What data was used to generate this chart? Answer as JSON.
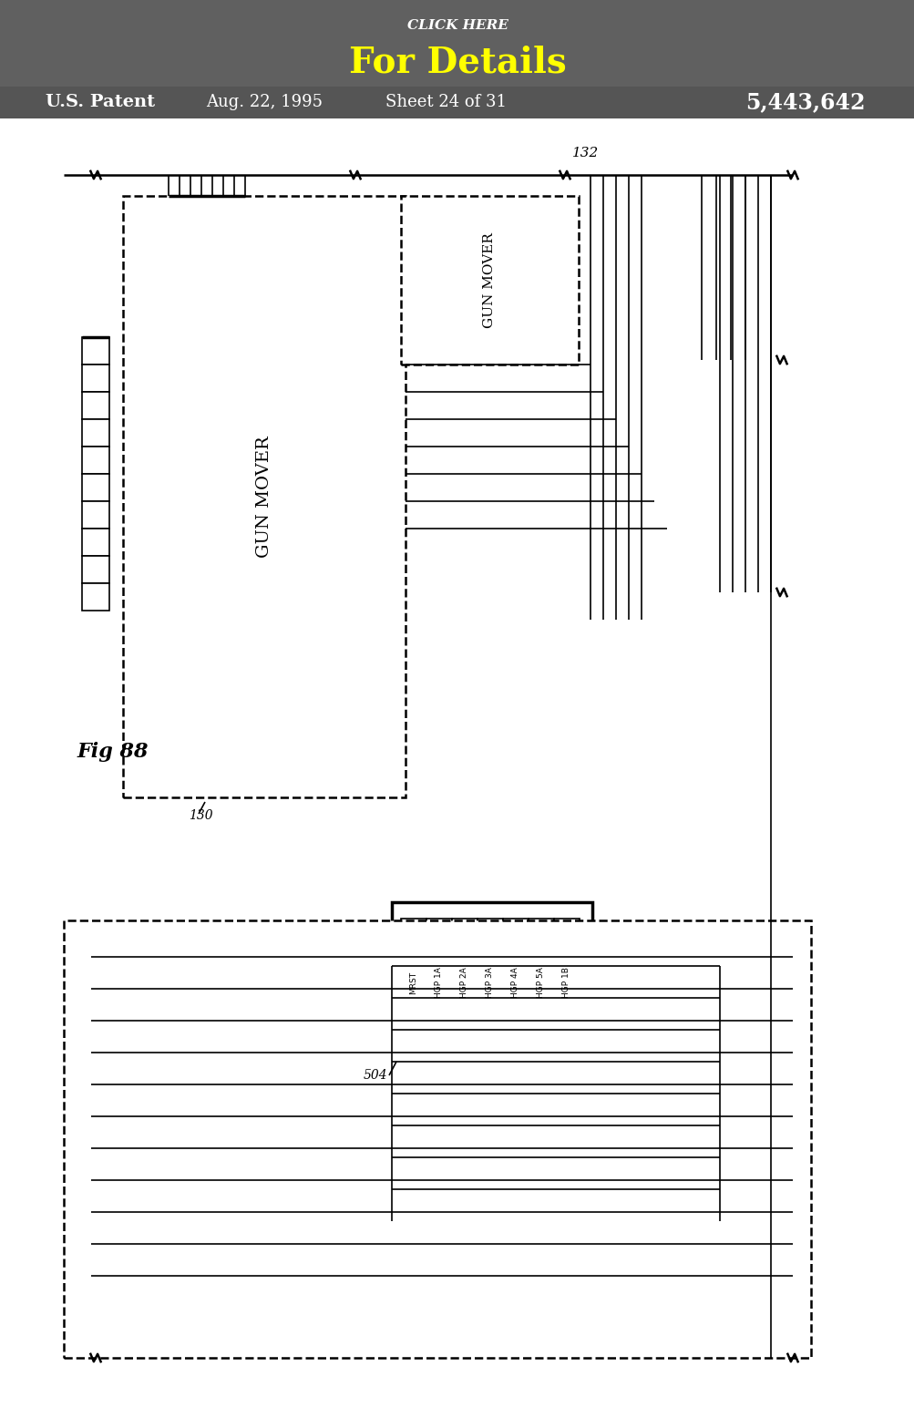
{
  "bg_color": "#ffffff",
  "header_bg": "#606060",
  "header_text_color": "#ffffff",
  "click_here_color": "#ffffff",
  "for_details_color": "#ffff00",
  "patent_line": "U.S. Patent        Aug. 22, 1995        Sheet 24 of 31        5,443,642",
  "fig_label": "Fig 88",
  "label_130": "130",
  "label_132": "132",
  "label_504": "504",
  "gun_mover_large": "GUN MOVER",
  "gun_mover_small": "GUN MOVER",
  "connector_labels": [
    "MRST",
    "HGP 1A",
    "HGP 2A",
    "HGP 3A",
    "HGP 4A",
    "HGP 5A",
    "HGP 1B"
  ]
}
